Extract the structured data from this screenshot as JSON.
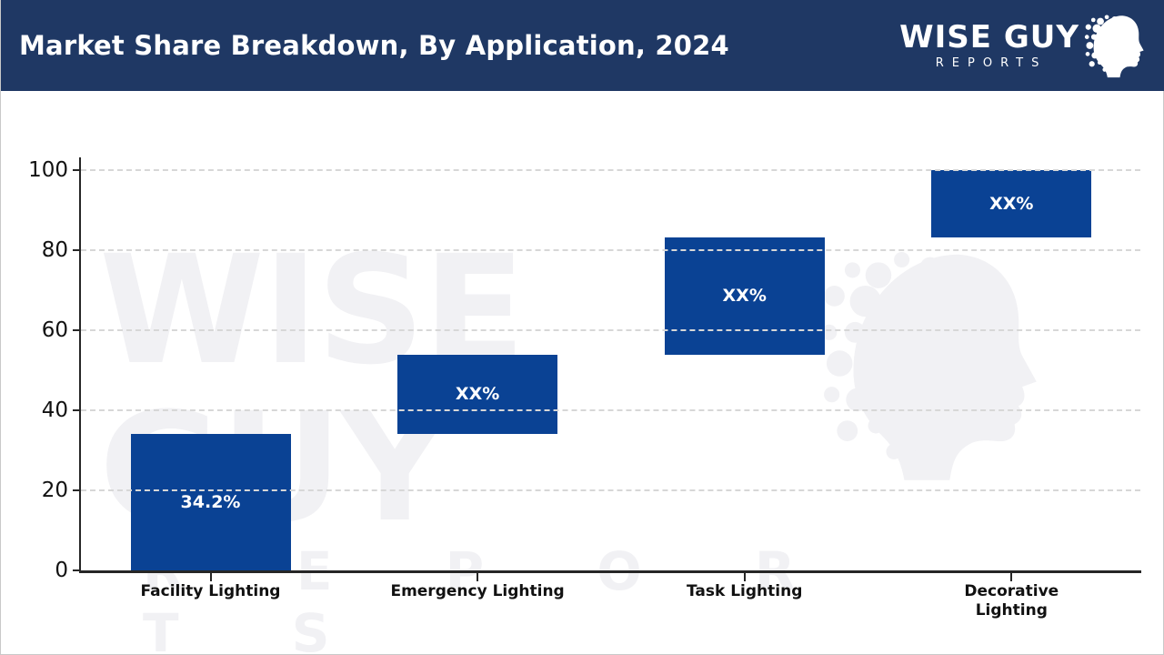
{
  "header": {
    "title": "Market Share Breakdown, By Application, 2024",
    "logo": {
      "line1": "WISE GUY",
      "line2": "REPORTS"
    }
  },
  "watermark": {
    "line1": "WISE GUY",
    "line2": "R E P O R T S"
  },
  "colors": {
    "header_bg": "#1f3864",
    "bar": "#0a4294",
    "grid": "#d7d7d7",
    "axis": "#262626",
    "watermark": "#f1f1f4"
  },
  "chart_data": {
    "type": "bar",
    "subtype": "waterfall",
    "title": "Market Share Breakdown, By Application, 2024",
    "categories": [
      "Facility Lighting",
      "Emergency Lighting",
      "Task Lighting",
      "Decorative Lighting"
    ],
    "category_label_lines": [
      [
        "Facility Lighting"
      ],
      [
        "Emergency Lighting"
      ],
      [
        "Task Lighting"
      ],
      [
        "Decorative",
        "Lighting"
      ]
    ],
    "segments": [
      {
        "category": "Facility Lighting",
        "start": 0,
        "end": 34.2,
        "label": "34.2%"
      },
      {
        "category": "Emergency Lighting",
        "start": 34.2,
        "end": 53.9,
        "label": "XX%"
      },
      {
        "category": "Task Lighting",
        "start": 53.9,
        "end": 83.2,
        "label": "XX%"
      },
      {
        "category": "Decorative Lighting",
        "start": 83.2,
        "end": 100,
        "label": "XX%"
      }
    ],
    "yticks": [
      0,
      20,
      40,
      60,
      80,
      100
    ],
    "ylim": [
      0,
      103
    ],
    "grid": "horizontal dashed",
    "legend": "none"
  }
}
